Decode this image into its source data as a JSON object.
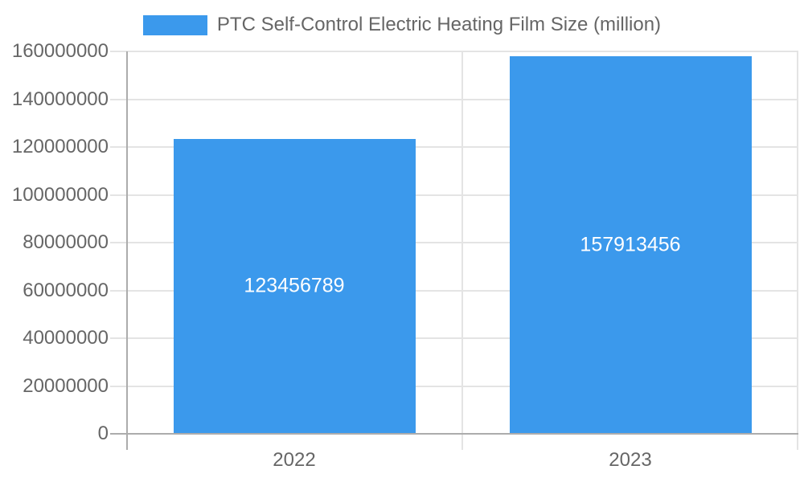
{
  "legend": {
    "label": "PTC Self-Control Electric Heating Film Size (million)"
  },
  "chart_data": {
    "type": "bar",
    "title": "PTC Self-Control Electric Heating Film Size (million)",
    "categories": [
      "2022",
      "2023"
    ],
    "series": [
      {
        "name": "PTC Self-Control Electric Heating Film Size (million)",
        "values": [
          123456789,
          157913456
        ]
      }
    ],
    "value_labels": [
      "123456789",
      "157913456"
    ],
    "xlabel": "",
    "ylabel": "",
    "ylim": [
      0,
      160000000
    ],
    "ytick_step": 20000000,
    "ytick_labels": [
      "0",
      "20000000",
      "40000000",
      "60000000",
      "80000000",
      "100000000",
      "120000000",
      "140000000",
      "160000000"
    ],
    "grid": true,
    "legend_position": "top",
    "colors": {
      "bar": "#3B99EC",
      "grid": "#E4E4E4",
      "zero_line": "#ACACAC",
      "text": "#666666",
      "bar_label": "#FFFFFF",
      "background": "#FFFFFF"
    }
  }
}
